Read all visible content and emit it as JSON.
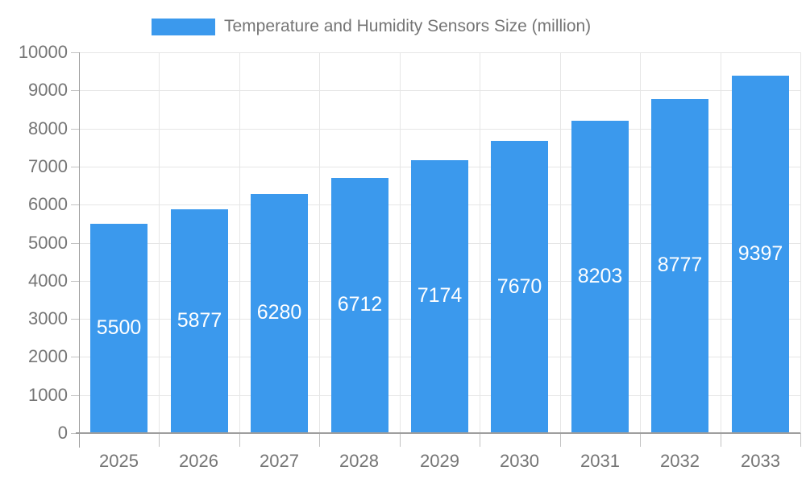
{
  "legend": {
    "label": "Temperature and Humidity Sensors Size (million)",
    "swatch_color": "#3b99ed"
  },
  "chart_data": {
    "type": "bar",
    "title": "Temperature and Humidity Sensors Size (million)",
    "categories": [
      "2025",
      "2026",
      "2027",
      "2028",
      "2029",
      "2030",
      "2031",
      "2032",
      "2033"
    ],
    "values": [
      5500,
      5877,
      6280,
      6712,
      7174,
      7670,
      8203,
      8777,
      9397
    ],
    "xlabel": "",
    "ylabel": "",
    "ylim": [
      0,
      10000
    ],
    "ytick_step": 1000,
    "ytick_labels": [
      "0",
      "1000",
      "2000",
      "3000",
      "4000",
      "5000",
      "6000",
      "7000",
      "8000",
      "9000",
      "10000"
    ],
    "grid": true,
    "legend_position": "top",
    "bar_color": "#3b99ed",
    "bar_label_color": "#ffffff",
    "axis_text_color": "#757575",
    "gridline_color": "#e6e6e6",
    "axis_line_color": "#9e9e9e",
    "tick_color": "#c2c2c2"
  }
}
